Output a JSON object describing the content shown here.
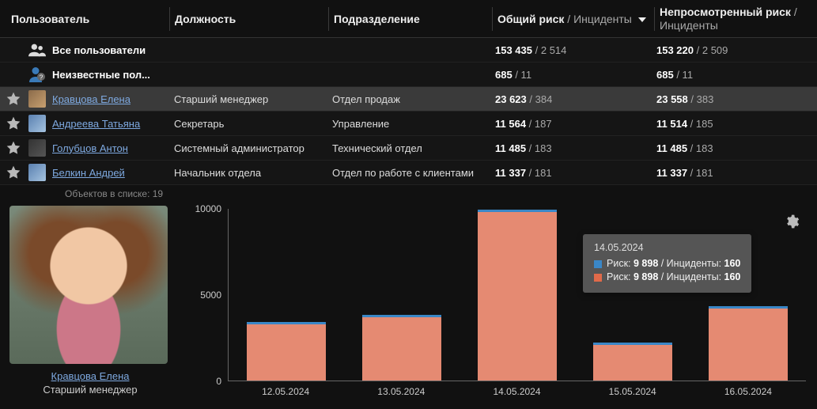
{
  "columns": {
    "user": "Пользователь",
    "position": "Должность",
    "department": "Подразделение",
    "risk_main": "Общий риск",
    "risk_sub": "Инциденты",
    "urisk_main": "Непросмотренный риск",
    "urisk_sub": "Инциденты"
  },
  "groups": [
    {
      "icon": "users",
      "name": "Все пользователи",
      "risk": "153 435",
      "inc": "2 514",
      "urisk": "153 220",
      "uinc": "2 509"
    },
    {
      "icon": "unknown",
      "name": "Неизвестные пол...",
      "risk": "685",
      "inc": "11",
      "urisk": "685",
      "uinc": "11"
    }
  ],
  "rows": [
    {
      "name": "Кравцова Елена",
      "position": "Старший менеджер",
      "department": "Отдел продаж",
      "risk": "23 623",
      "inc": "384",
      "urisk": "23 558",
      "uinc": "383",
      "hl": true,
      "avatar": "warm"
    },
    {
      "name": "Андреева Татьяна",
      "position": "Секретарь",
      "department": "Управление",
      "risk": "11 564",
      "inc": "187",
      "urisk": "11 514",
      "uinc": "185",
      "avatar": "blue"
    },
    {
      "name": "Голубцов Антон",
      "position": "Системный администратор",
      "department": "Технический отдел",
      "risk": "11 485",
      "inc": "183",
      "urisk": "11 485",
      "uinc": "183",
      "avatar": "dark"
    },
    {
      "name": "Белкин Андрей",
      "position": "Начальник отдела",
      "department": "Отдел по работе с клиентами",
      "risk": "11 337",
      "inc": "181",
      "urisk": "11 337",
      "uinc": "181",
      "avatar": "blue"
    }
  ],
  "list_count_label": "Объектов в списке: 19",
  "profile": {
    "name": "Кравцова Елена",
    "role": "Старший менеджер"
  },
  "chart": {
    "type": "bar",
    "y_max": 10000,
    "y_ticks": [
      0,
      5000,
      10000
    ],
    "y_tick_labels": [
      "0",
      "5000",
      "10000"
    ],
    "x_labels": [
      "12.05.2024",
      "13.05.2024",
      "14.05.2024",
      "15.05.2024",
      "16.05.2024"
    ],
    "values": [
      3400,
      3800,
      9898,
      2200,
      4300
    ],
    "bar_color": "#e58a72",
    "top_strip_color": "#3a87c7",
    "axis_color": "#666",
    "background": "#111"
  },
  "tooltip": {
    "date": "14.05.2024",
    "lines": [
      {
        "color": "#3a87c7",
        "risk_label": "Риск:",
        "risk": "9 898",
        "sep": "/ Инциденты:",
        "inc": "160"
      },
      {
        "color": "#e06a4a",
        "risk_label": "Риск:",
        "risk": "9 898",
        "sep": "/ Инциденты:",
        "inc": "160"
      }
    ],
    "slot_index": 2
  }
}
